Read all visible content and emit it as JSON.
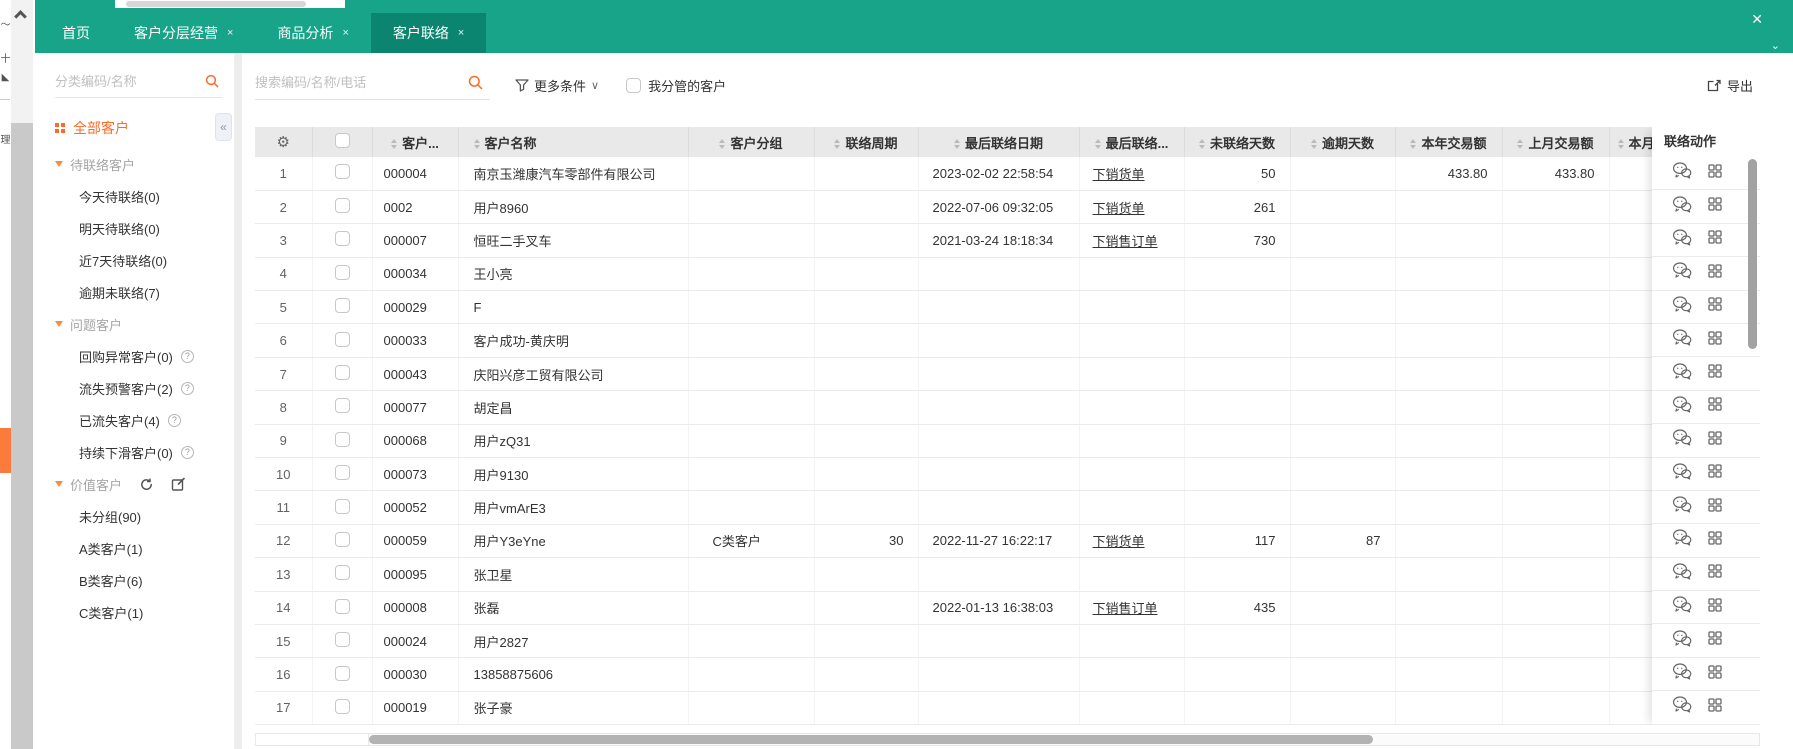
{
  "icons": {
    "gear": "⚙",
    "close": "✕",
    "chevron_down": "⌄",
    "collapse": "«",
    "filter_chevron": "∨",
    "tab_close": "×"
  },
  "background": {
    "fragments": [
      "〜",
      "十",
      "◣",
      "理"
    ]
  },
  "colors": {
    "brand_green": "#18A489",
    "active_tab_green": "#0C8570",
    "accent_orange": "#FA6C28"
  },
  "tabbar": {
    "tabs": [
      {
        "label": "首页",
        "closable": false,
        "active": false
      },
      {
        "label": "客户分层经营",
        "closable": true,
        "active": false
      },
      {
        "label": "商品分析",
        "closable": true,
        "active": false
      },
      {
        "label": "客户联络",
        "closable": true,
        "active": true
      }
    ]
  },
  "sidebar": {
    "search_placeholder": "分类编码/名称",
    "all_customers": "全部客户",
    "groups": [
      {
        "label": "待联络客户",
        "children": [
          {
            "label": "今天待联络(0)"
          },
          {
            "label": "明天待联络(0)"
          },
          {
            "label": "近7天待联络(0)"
          },
          {
            "label": "逾期未联络(7)"
          }
        ]
      },
      {
        "label": "问题客户",
        "children": [
          {
            "label": "回购异常客户(0)",
            "help": true
          },
          {
            "label": "流失预警客户(2)",
            "help": true
          },
          {
            "label": "已流失客户(4)",
            "help": true
          },
          {
            "label": "持续下滑客户(0)",
            "help": true
          }
        ]
      },
      {
        "label": "价值客户",
        "children": [
          {
            "label": "未分组(90)"
          },
          {
            "label": "A类客户(1)"
          },
          {
            "label": "B类客户(6)"
          },
          {
            "label": "C类客户(1)"
          }
        ]
      }
    ]
  },
  "toolbar": {
    "search_placeholder": "搜索编码/名称/电话",
    "more_filters": "更多条件",
    "my_customers": "我分管的客户",
    "export": "导出"
  },
  "table": {
    "columns": [
      {
        "label": "客户..."
      },
      {
        "label": "客户名称"
      },
      {
        "label": "客户分组"
      },
      {
        "label": "联络周期"
      },
      {
        "label": "最后联络日期"
      },
      {
        "label": "最后联络..."
      },
      {
        "label": "未联络天数"
      },
      {
        "label": "逾期天数"
      },
      {
        "label": "本年交易额"
      },
      {
        "label": "上月交易额"
      },
      {
        "label": "本月交易额"
      }
    ],
    "fixed_column": "联络动作",
    "rows": [
      {
        "id": "000004",
        "name": "南京玉潍康汽车零部件有限公司",
        "group": "",
        "cycle": "",
        "last_date": "2023-02-02 22:58:54",
        "action": "下销货单",
        "days_no_contact": "50",
        "days_overdue": "",
        "amount_year": "433.80",
        "amount_last_month": "433.80"
      },
      {
        "id": "0002",
        "name": "用户8960",
        "group": "",
        "cycle": "",
        "last_date": "2022-07-06 09:32:05",
        "action": "下销货单",
        "days_no_contact": "261",
        "days_overdue": "",
        "amount_year": "",
        "amount_last_month": ""
      },
      {
        "id": "000007",
        "name": "恒旺二手叉车",
        "group": "",
        "cycle": "",
        "last_date": "2021-03-24 18:18:34",
        "action": "下销售订单",
        "days_no_contact": "730",
        "days_overdue": "",
        "amount_year": "",
        "amount_last_month": ""
      },
      {
        "id": "000034",
        "name": "王小亮",
        "group": "",
        "cycle": "",
        "last_date": "",
        "action": "",
        "days_no_contact": "",
        "days_overdue": "",
        "amount_year": "",
        "amount_last_month": ""
      },
      {
        "id": "000029",
        "name": "F",
        "group": "",
        "cycle": "",
        "last_date": "",
        "action": "",
        "days_no_contact": "",
        "days_overdue": "",
        "amount_year": "",
        "amount_last_month": ""
      },
      {
        "id": "000033",
        "name": "客户成功-黄庆明",
        "group": "",
        "cycle": "",
        "last_date": "",
        "action": "",
        "days_no_contact": "",
        "days_overdue": "",
        "amount_year": "",
        "amount_last_month": ""
      },
      {
        "id": "000043",
        "name": "庆阳兴彦工贸有限公司",
        "group": "",
        "cycle": "",
        "last_date": "",
        "action": "",
        "days_no_contact": "",
        "days_overdue": "",
        "amount_year": "",
        "amount_last_month": ""
      },
      {
        "id": "000077",
        "name": "胡定昌",
        "group": "",
        "cycle": "",
        "last_date": "",
        "action": "",
        "days_no_contact": "",
        "days_overdue": "",
        "amount_year": "",
        "amount_last_month": ""
      },
      {
        "id": "000068",
        "name": "用户zQ31",
        "group": "",
        "cycle": "",
        "last_date": "",
        "action": "",
        "days_no_contact": "",
        "days_overdue": "",
        "amount_year": "",
        "amount_last_month": ""
      },
      {
        "id": "000073",
        "name": "用户9130",
        "group": "",
        "cycle": "",
        "last_date": "",
        "action": "",
        "days_no_contact": "",
        "days_overdue": "",
        "amount_year": "",
        "amount_last_month": ""
      },
      {
        "id": "000052",
        "name": "用户vmArE3",
        "group": "",
        "cycle": "",
        "last_date": "",
        "action": "",
        "days_no_contact": "",
        "days_overdue": "",
        "amount_year": "",
        "amount_last_month": ""
      },
      {
        "id": "000059",
        "name": "用户Y3eYne",
        "group": "C类客户",
        "cycle": "30",
        "last_date": "2022-11-27 16:22:17",
        "action": "下销货单",
        "days_no_contact": "117",
        "days_overdue": "87",
        "amount_year": "",
        "amount_last_month": ""
      },
      {
        "id": "000095",
        "name": "张卫星",
        "group": "",
        "cycle": "",
        "last_date": "",
        "action": "",
        "days_no_contact": "",
        "days_overdue": "",
        "amount_year": "",
        "amount_last_month": ""
      },
      {
        "id": "000008",
        "name": "张磊",
        "group": "",
        "cycle": "",
        "last_date": "2022-01-13 16:38:03",
        "action": "下销售订单",
        "days_no_contact": "435",
        "days_overdue": "",
        "amount_year": "",
        "amount_last_month": ""
      },
      {
        "id": "000024",
        "name": "用户2827",
        "group": "",
        "cycle": "",
        "last_date": "",
        "action": "",
        "days_no_contact": "",
        "days_overdue": "",
        "amount_year": "",
        "amount_last_month": ""
      },
      {
        "id": "000030",
        "name": "13858875606",
        "group": "",
        "cycle": "",
        "last_date": "",
        "action": "",
        "days_no_contact": "",
        "days_overdue": "",
        "amount_year": "",
        "amount_last_month": ""
      },
      {
        "id": "000019",
        "name": "张子豪",
        "group": "",
        "cycle": "",
        "last_date": "",
        "action": "",
        "days_no_contact": "",
        "days_overdue": "",
        "amount_year": "",
        "amount_last_month": ""
      }
    ]
  }
}
